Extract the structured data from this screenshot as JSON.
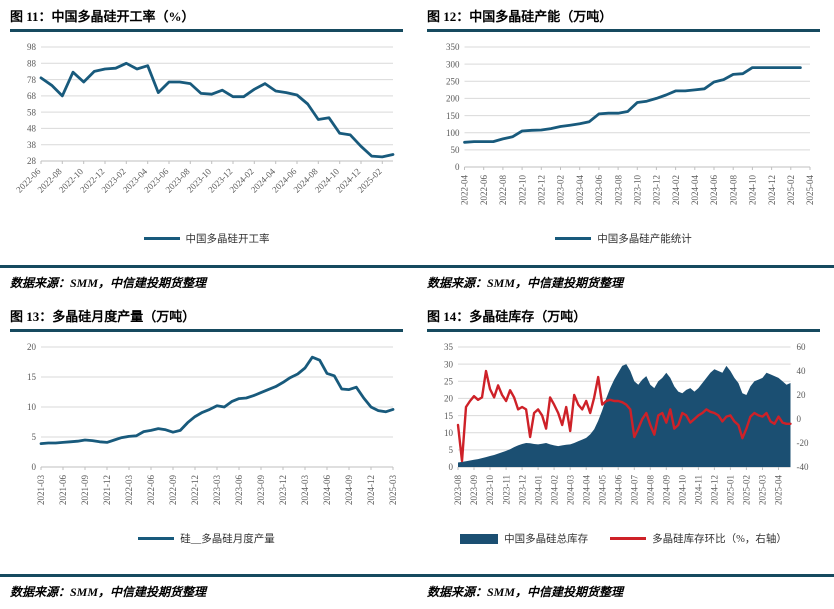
{
  "colors": {
    "rule": "#164A5F",
    "grid": "#D9D9D9",
    "axis": "#BFBFBF",
    "tick_text": "#595959",
    "primary_blue": "#185A7C",
    "area_blue": "#1B4F72",
    "red": "#CE2128"
  },
  "chart_data": [
    {
      "figure": "图 11",
      "title": "图 11：中国多晶硅开工率（%）",
      "source": "数据来源：SMM，中信建投期货整理",
      "type": "line",
      "x_freq": "monthly",
      "x_start": "2022-06",
      "ylim": [
        28,
        98
      ],
      "yticks": [
        28,
        38,
        48,
        58,
        68,
        78,
        88,
        98
      ],
      "tick_rotation": 45,
      "tick_every": 2,
      "x_tick_labels": [
        "2022-06",
        "2022-08",
        "2022-10",
        "2022-12",
        "2023-02",
        "2023-04",
        "2023-06",
        "2023-08",
        "2023-10",
        "2023-12",
        "2024-02",
        "2024-04",
        "2024-06",
        "2024-08",
        "2024-10",
        "2024-12",
        "2025-02"
      ],
      "series": [
        {
          "name": "中国多晶硅开工率",
          "type": "line",
          "axis": "left",
          "color": "#185A7C",
          "values": [
            79,
            74.5,
            68,
            82.5,
            76.5,
            83,
            84.5,
            85,
            88,
            84.5,
            86.5,
            70,
            76.5,
            76.5,
            75.5,
            69.5,
            69,
            71.5,
            67.5,
            67.5,
            72,
            75.5,
            71,
            70,
            68.5,
            63,
            53.5,
            54.5,
            45,
            44,
            37,
            31,
            30.5,
            32
          ]
        }
      ]
    },
    {
      "figure": "图 12",
      "title": "图 12：中国多晶硅产能（万吨）",
      "source": "数据来源：SMM，中信建投期货整理",
      "type": "line",
      "x_freq": "monthly",
      "x_start": "2022-04",
      "ylim": [
        0,
        350
      ],
      "yticks": [
        0,
        50,
        100,
        150,
        200,
        250,
        300,
        350
      ],
      "tick_rotation": 90,
      "tick_every": 2,
      "x_tick_labels": [
        "2022-04",
        "2022-06",
        "2022-08",
        "2022-10",
        "2022-12",
        "2023-02",
        "2023-04",
        "2023-06",
        "2023-08",
        "2023-10",
        "2023-12",
        "2024-02",
        "2024-04",
        "2024-06",
        "2024-08",
        "2024-10",
        "2024-12",
        "2025-02",
        "2025-04"
      ],
      "series": [
        {
          "name": "中国多晶硅产能统计",
          "type": "line",
          "axis": "left",
          "color": "#185A7C",
          "values": [
            72,
            74,
            74,
            74,
            82,
            88,
            105,
            107,
            108,
            112,
            118,
            122,
            126,
            132,
            155,
            157,
            157,
            162,
            188,
            192,
            200,
            210,
            222,
            222,
            225,
            228,
            248,
            255,
            270,
            272,
            290,
            290,
            290,
            290,
            290,
            290
          ]
        }
      ]
    },
    {
      "figure": "图 13",
      "title": "图 13：多晶硅月度产量（万吨）",
      "source": "数据来源：SMM，中信建投期货整理",
      "type": "line",
      "x_freq": "monthly",
      "x_start": "2021-03",
      "ylim": [
        0,
        20
      ],
      "yticks": [
        0,
        5,
        10,
        15,
        20
      ],
      "tick_rotation": 90,
      "tick_every": 3,
      "x_tick_labels": [
        "2021-03",
        "2021-06",
        "2021-09",
        "2021-12",
        "2022-03",
        "2022-06",
        "2022-09",
        "2022-12",
        "2023-03",
        "2023-06",
        "2023-09",
        "2023-12",
        "2024-03",
        "2024-06",
        "2024-09",
        "2024-12",
        "2025-03"
      ],
      "series": [
        {
          "name": "硅__多晶硅月度产量",
          "type": "line",
          "axis": "left",
          "color": "#185A7C",
          "values": [
            3.9,
            4.0,
            4.0,
            4.1,
            4.2,
            4.3,
            4.5,
            4.4,
            4.2,
            4.1,
            4.5,
            4.9,
            5.1,
            5.2,
            5.9,
            6.1,
            6.4,
            6.2,
            5.8,
            6.1,
            7.4,
            8.4,
            9.1,
            9.6,
            10.2,
            10.0,
            10.9,
            11.4,
            11.5,
            11.9,
            12.4,
            12.9,
            13.4,
            14.1,
            14.9,
            15.5,
            16.5,
            18.3,
            17.8,
            15.6,
            15.2,
            13.0,
            12.9,
            13.3,
            11.5,
            10.0,
            9.4,
            9.2,
            9.6
          ]
        }
      ]
    },
    {
      "figure": "图 14",
      "title": "图 14：多晶硅库存（万吨）",
      "source": "数据来源：SMM，中信建投期货整理",
      "type": "area+line",
      "x_freq": "weekly",
      "x_start": "2023-08",
      "ylim": [
        0,
        35
      ],
      "yticks": [
        0,
        5,
        10,
        15,
        20,
        25,
        30,
        35
      ],
      "ylim_right": [
        -40,
        60
      ],
      "yticks_right": [
        -40,
        -20,
        0,
        20,
        40,
        60
      ],
      "tick_rotation": 90,
      "tick_every": 4,
      "x_tick_labels": [
        "2023-08",
        "2023-09",
        "2023-10",
        "2023-11",
        "2023-12",
        "2024-01",
        "2024-02",
        "2024-03",
        "2024-04",
        "2024-05",
        "2024-06",
        "2024-07",
        "2024-08",
        "2024-09",
        "2024-10",
        "2024-11",
        "2024-12",
        "2025-01",
        "2025-02",
        "2025-03",
        "2025-04"
      ],
      "series": [
        {
          "name": "中国多晶硅总库存",
          "type": "area",
          "axis": "left",
          "color": "#1B4F72",
          "values": [
            1.3,
            1.5,
            1.7,
            1.9,
            2.1,
            2.3,
            2.6,
            2.9,
            3.2,
            3.5,
            3.9,
            4.3,
            4.7,
            5.2,
            5.8,
            6.3,
            6.7,
            7.0,
            6.9,
            6.7,
            6.6,
            6.8,
            7.0,
            6.6,
            6.3,
            6.1,
            6.3,
            6.5,
            6.6,
            7.0,
            7.5,
            8.0,
            8.5,
            9.5,
            11.0,
            13.5,
            16.5,
            20.0,
            23.0,
            25.5,
            27.5,
            29.5,
            30.0,
            28.0,
            25.0,
            24.0,
            25.5,
            26.5,
            24.0,
            23.0,
            25.0,
            26.0,
            27.5,
            26.0,
            23.5,
            22.0,
            21.5,
            22.5,
            23.0,
            22.0,
            23.0,
            24.5,
            26.0,
            27.5,
            28.5,
            28.0,
            27.5,
            29.5,
            28.0,
            26.0,
            24.5,
            21.5,
            21.0,
            23.5,
            25.0,
            25.5,
            26.0,
            27.5,
            27.0,
            26.5,
            26.0,
            25.0,
            24.0,
            24.5
          ]
        },
        {
          "name": "多晶硅库存环比（%，右轴）",
          "type": "line",
          "axis": "right",
          "color": "#CE2128",
          "values": [
            -5,
            -35,
            10,
            15,
            19,
            16,
            18,
            40,
            25,
            18,
            28,
            20,
            15,
            24,
            18,
            8,
            10,
            8,
            -15,
            5,
            8,
            3,
            -8,
            18,
            12,
            5,
            -5,
            10,
            -10,
            20,
            12,
            8,
            15,
            5,
            18,
            35,
            12,
            15,
            16,
            15,
            15,
            14,
            12,
            8,
            -15,
            -8,
            0,
            5,
            -5,
            -13,
            3,
            5,
            -3,
            8,
            -8,
            -5,
            5,
            3,
            -3,
            0,
            3,
            5,
            8,
            6,
            5,
            3,
            -2,
            2,
            3,
            -2,
            -5,
            -16,
            -8,
            2,
            5,
            3,
            2,
            5,
            -2,
            -4,
            2,
            -3,
            -4,
            -4
          ]
        }
      ]
    }
  ]
}
